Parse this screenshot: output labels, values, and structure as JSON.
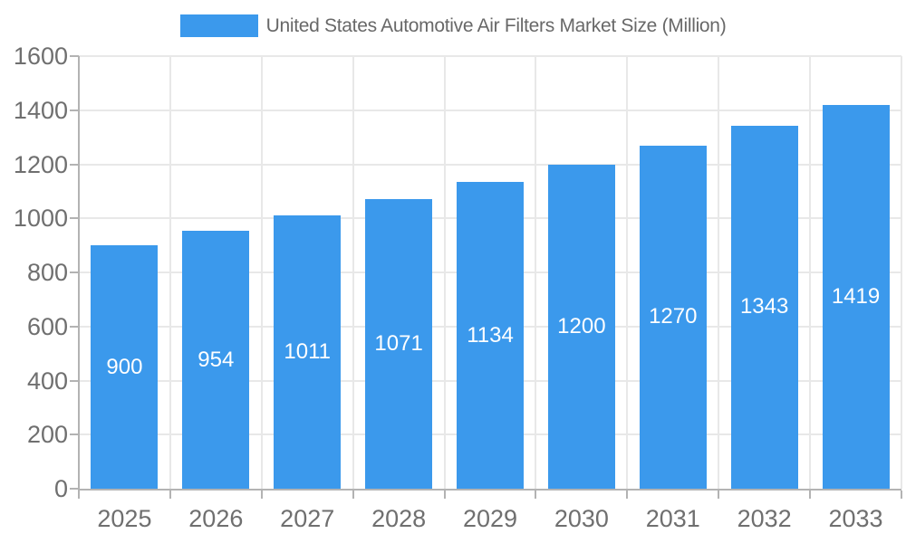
{
  "chart_data": {
    "type": "bar",
    "title": "United States Automotive Air Filters Market Size (Million)",
    "categories": [
      "2025",
      "2026",
      "2027",
      "2028",
      "2029",
      "2030",
      "2031",
      "2032",
      "2033"
    ],
    "values": [
      900,
      954,
      1011,
      1071,
      1134,
      1200,
      1270,
      1343,
      1419
    ],
    "yticks": [
      "0",
      "200",
      "400",
      "600",
      "800",
      "1000",
      "1200",
      "1400",
      "1600"
    ],
    "ylim": [
      0,
      1600
    ],
    "ytick_step": 200,
    "xlabel": "",
    "ylabel": "",
    "grid": true,
    "legend_position": "top",
    "value_labels": "inside-center"
  },
  "colors": {
    "bar": "#3B99EC",
    "bar_label": "#FFFFFF",
    "axis_line": "#B3B3B3",
    "grid_line": "#E8E8E8",
    "tick_text": "#6F6F6F",
    "title_text": "#686868",
    "background": "#FFFFFF"
  }
}
